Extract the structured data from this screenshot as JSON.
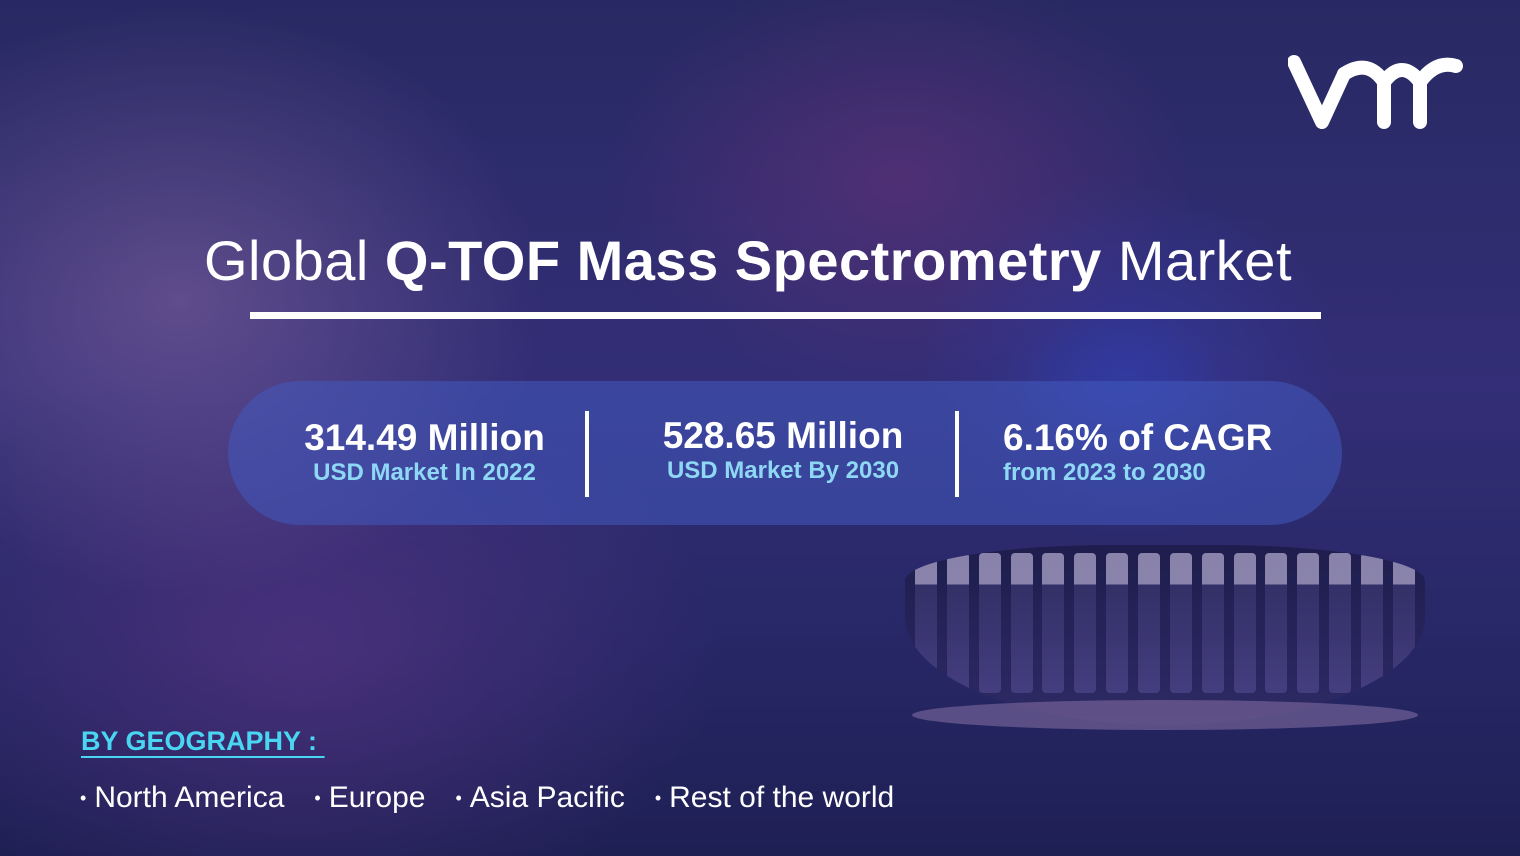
{
  "title": {
    "prefix": "Global",
    "bold": "Q-TOF Mass Spectrometry",
    "suffix": "Market"
  },
  "stats": [
    {
      "value": "314.49 Million",
      "label": "USD Market In 2022"
    },
    {
      "value": "528.65 Million",
      "label": "USD Market By 2030"
    },
    {
      "value": "6.16% of CAGR",
      "label": "from 2023 to 2030"
    }
  ],
  "geography": {
    "heading": "BY GEOGRAPHY : ",
    "bullet": "•",
    "items": [
      "North America",
      "Europe",
      "Asia Pacific",
      "Rest of the world"
    ]
  },
  "logo": {
    "icon": "vmr-logo",
    "color": "#ffffff"
  },
  "colors": {
    "accent": "#49d6f2",
    "label": "#8fd8f5",
    "pill": "#415abe"
  }
}
